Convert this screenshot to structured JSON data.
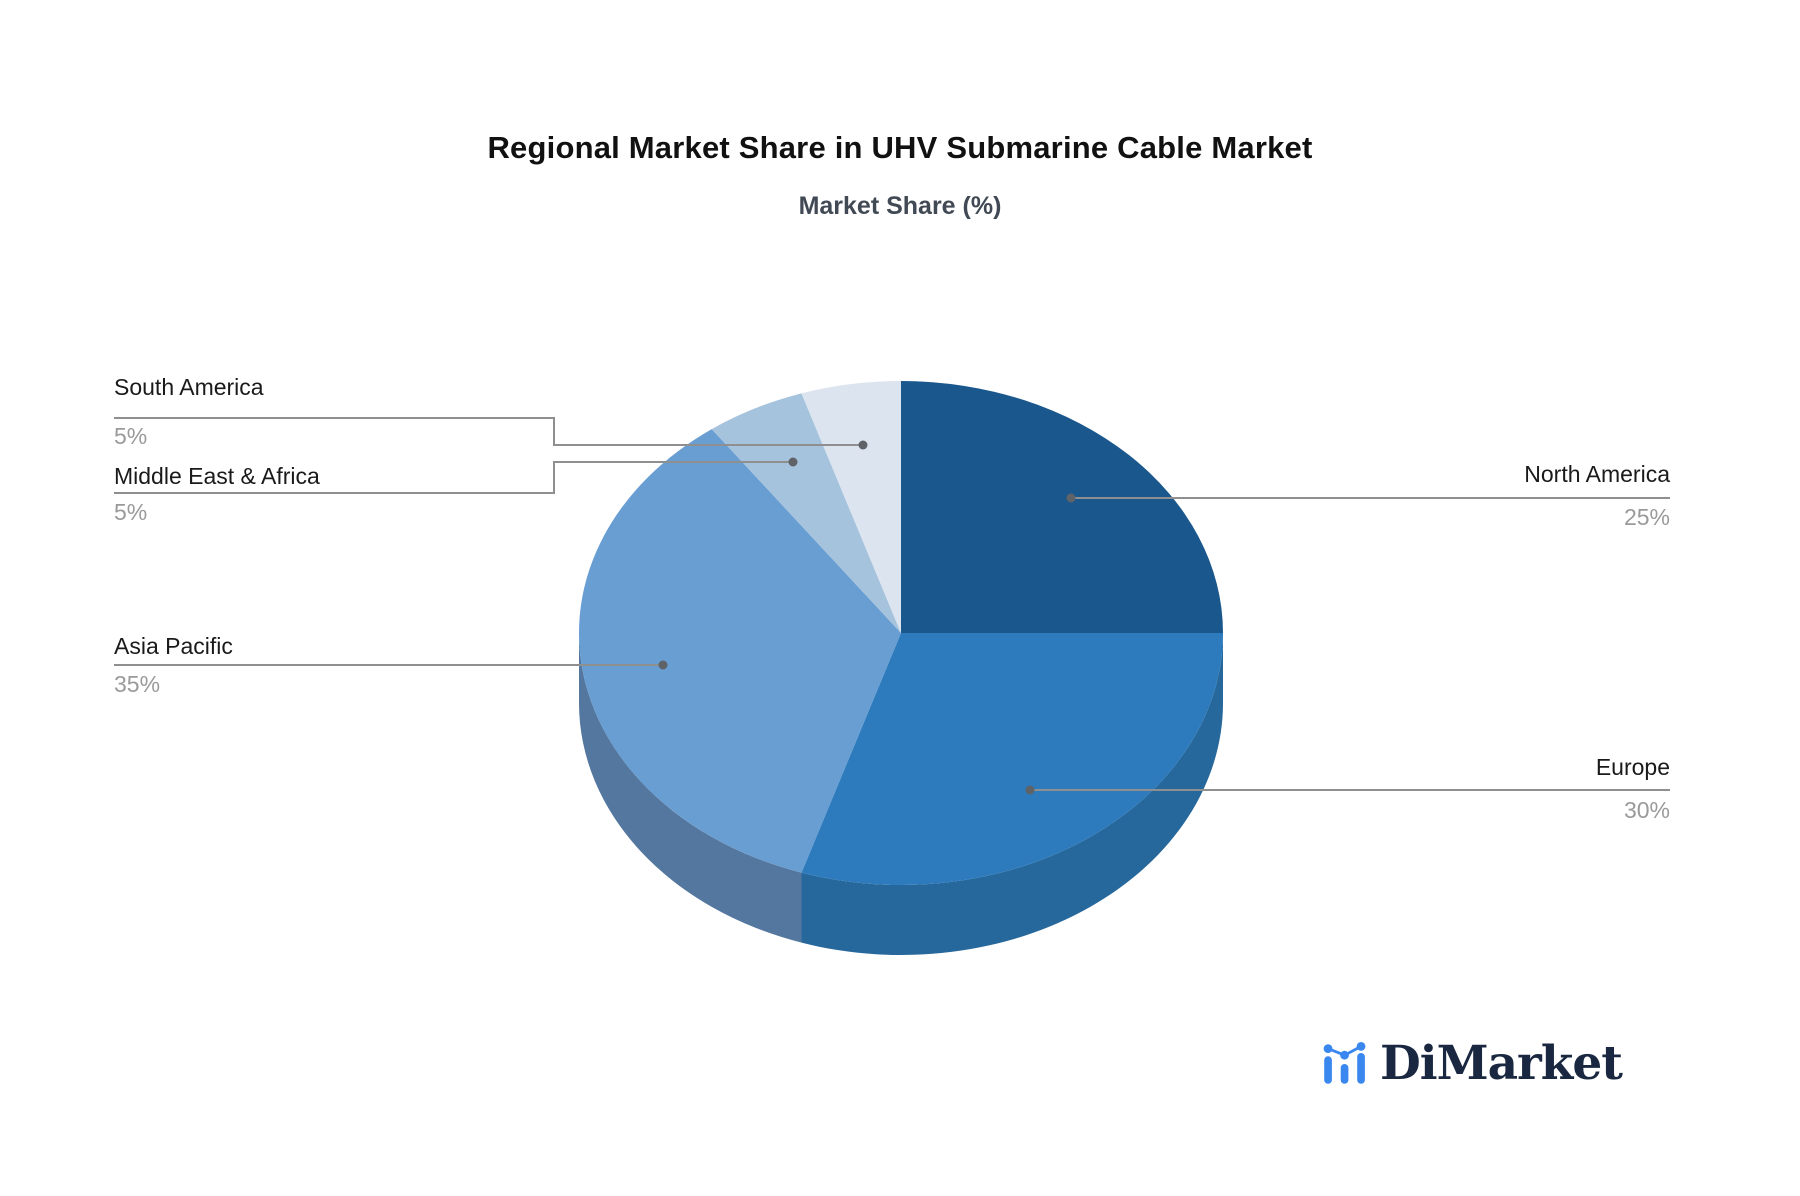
{
  "title": "Regional Market Share in UHV Submarine Cable Market",
  "subtitle": "Market Share (%)",
  "chart_data": {
    "type": "pie",
    "title": "Regional Market Share in UHV Submarine Cable Market",
    "subtitle": "Market Share (%)",
    "unit": "%",
    "start_angle_deg": 90,
    "direction": "clockwise",
    "effect": "3d-extruded",
    "legend": "none",
    "slices": [
      {
        "label": "North America",
        "value": 25,
        "value_text": "25%",
        "color": "#1a578c",
        "side_color": "#164a78",
        "label_side": "right"
      },
      {
        "label": "Europe",
        "value": 30,
        "value_text": "30%",
        "color": "#2d7bbd",
        "side_color": "#27689c",
        "label_side": "right"
      },
      {
        "label": "Asia Pacific",
        "value": 35,
        "value_text": "35%",
        "color": "#699ed3",
        "side_color": "#54779f",
        "label_side": "left"
      },
      {
        "label": "Middle East & Africa",
        "value": 5,
        "value_text": "5%",
        "color": "#a6c3de",
        "side_color": "#8ba9c4",
        "label_side": "left"
      },
      {
        "label": "South America",
        "value": 5,
        "value_text": "5%",
        "color": "#dce5ef",
        "side_color": "#bcc9d8",
        "label_side": "left"
      }
    ]
  },
  "brand": {
    "name": "DiMarket",
    "icon": "bar-line-chart-icon",
    "icon_color": "#3b87f0",
    "text_color": "#1a2740"
  },
  "style": {
    "title_color": "#111111",
    "subtitle_color": "#414a54",
    "name_color": "#1a1a1a",
    "pct_color": "#9a9a9a",
    "connector_color": "#8f8f8f",
    "dot_color": "#5f6368"
  }
}
